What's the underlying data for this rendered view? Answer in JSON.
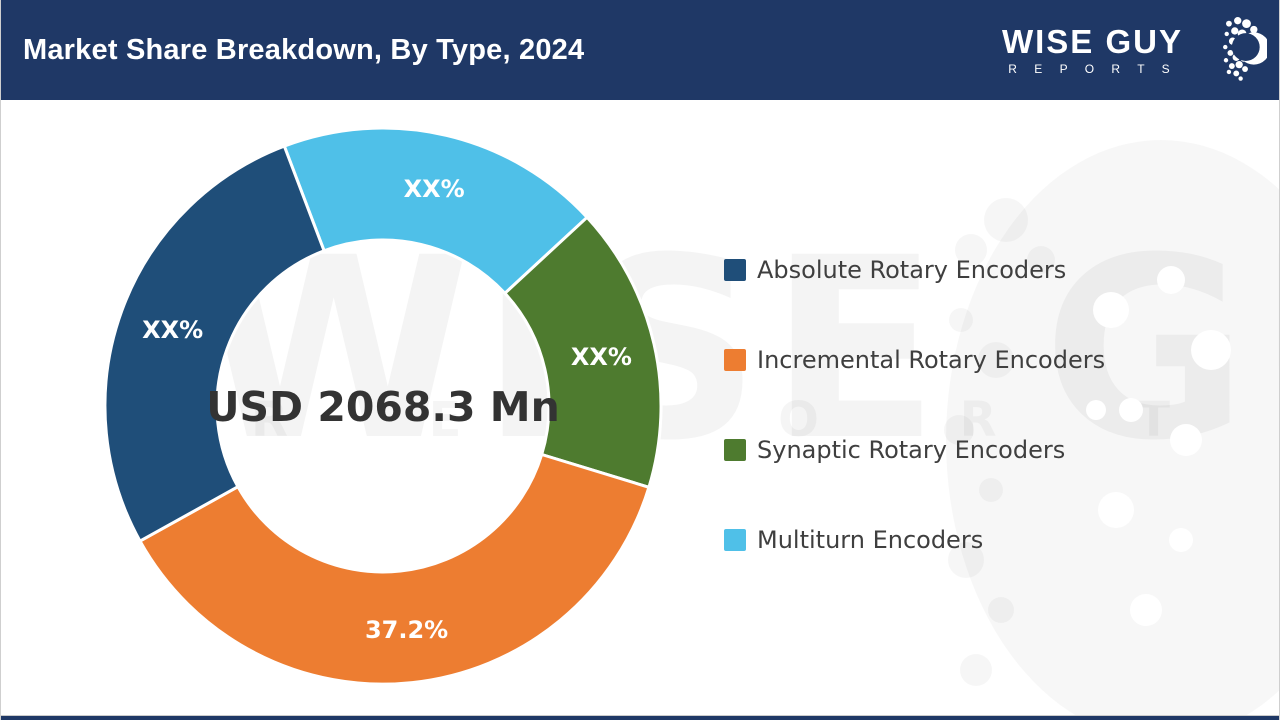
{
  "header": {
    "title": "Market Share Breakdown, By Type, 2024",
    "logo": {
      "line1": "WISE GUY",
      "line2": "R E P O R T S"
    }
  },
  "watermark": {
    "line1": "WISE GUY",
    "line2": "R E P O R T S"
  },
  "chart_data": {
    "type": "pie",
    "subtype": "donut",
    "title": "Market Share Breakdown, By Type, 2024",
    "center_label": "USD 2068.3 Mn",
    "start_angle_deg": -20.8,
    "legend_position": "right",
    "segments": [
      {
        "id": "multiturn-encoders",
        "label": "Multiturn Encoders",
        "display_value": "XX%",
        "share_pct": 18.9,
        "color": "#4fc0e8"
      },
      {
        "id": "synaptic-rotary-encoders",
        "label": "Synaptic Rotary Encoders",
        "display_value": "XX%",
        "share_pct": 16.6,
        "color": "#4e7b2f"
      },
      {
        "id": "incremental-rotary-encoders",
        "label": "Incremental Rotary Encoders",
        "display_value": "37.2%",
        "share_pct": 37.2,
        "color": "#ed7d31"
      },
      {
        "id": "absolute-rotary-encoders",
        "label": "Absolute Rotary Encoders",
        "display_value": "XX%",
        "share_pct": 27.3,
        "color": "#1f4e79"
      }
    ]
  },
  "legend": {
    "items": [
      {
        "label": "Absolute Rotary Encoders",
        "color": "#1f4e79"
      },
      {
        "label": "Incremental Rotary Encoders",
        "color": "#ed7d31"
      },
      {
        "label": "Synaptic Rotary Encoders",
        "color": "#4e7b2f"
      },
      {
        "label": "Multiturn Encoders",
        "color": "#4fc0e8"
      }
    ]
  },
  "colors": {
    "header_bg": "#1f3866",
    "center_text": "#333333",
    "legend_text": "#3f3f3f",
    "separator": "#ffffff"
  }
}
